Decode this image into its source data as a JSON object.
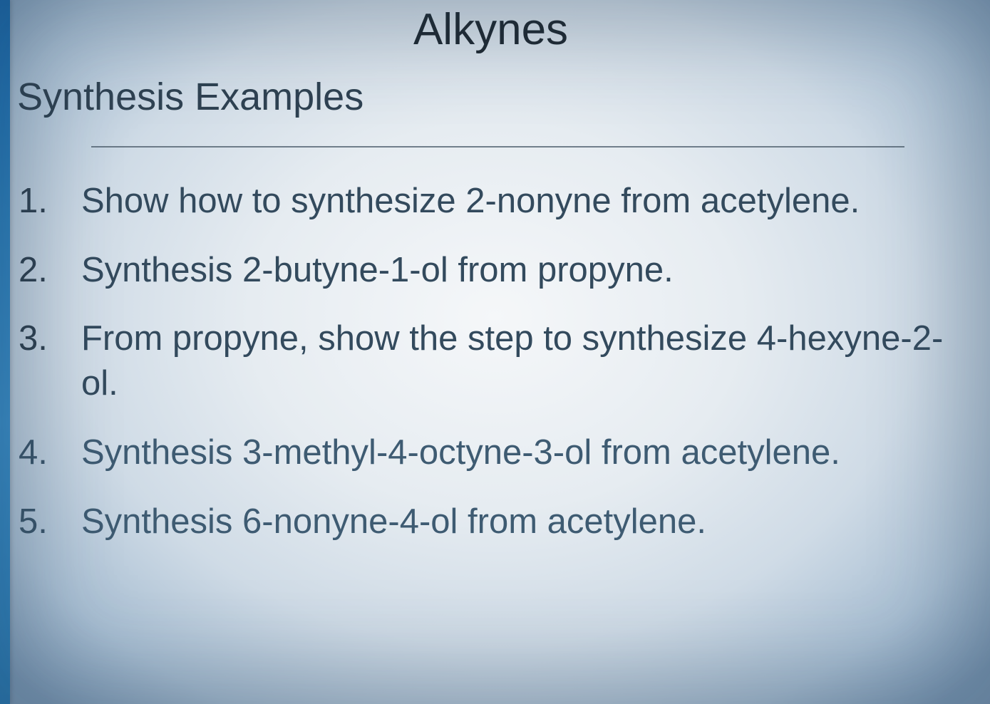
{
  "slide": {
    "title": "Alkynes",
    "subtitle": "Synthesis Examples",
    "items": [
      "Show how to synthesize 2-nonyne from acetylene.",
      "Synthesis 2-butyne-1-ol from propyne.",
      "From propyne, show the step to synthesize 4-hexyne-2-ol.",
      "Synthesis 3-methyl-4-octyne-3-ol from acetylene.",
      "Synthesis 6-nonyne-4-ol from acetylene."
    ]
  },
  "style": {
    "title_fontsize": 62,
    "subtitle_fontsize": 54,
    "item_fontsize": 49,
    "title_color": "#1f2a33",
    "text_color": "#334a5d",
    "lower_text_color": "#3e5b72",
    "rule_color": "#4a5a68",
    "bg_center": "#f5f7f9",
    "bg_edge": "#7e9bb7",
    "left_strip_color": "#2c7fbc"
  }
}
